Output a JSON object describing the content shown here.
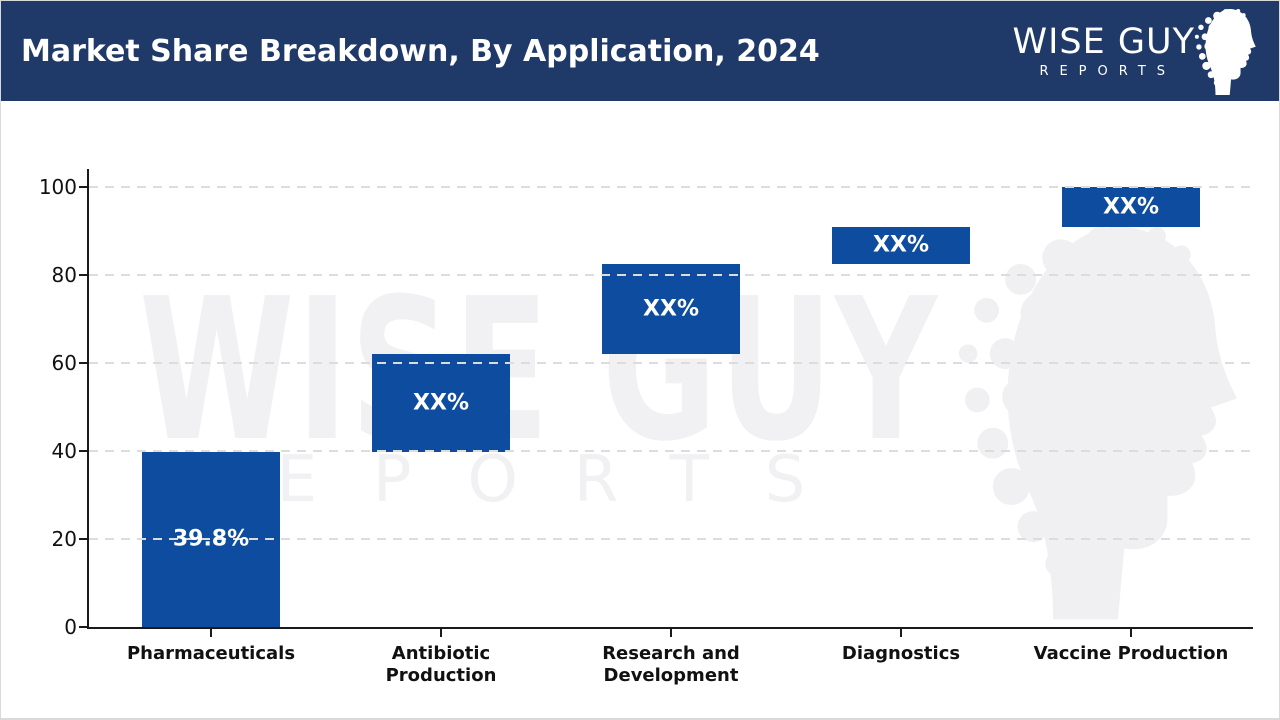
{
  "header": {
    "title": "Market Share Breakdown, By Application, 2024",
    "logo": {
      "line1": "WISE GUY",
      "line2": "REPORTS"
    }
  },
  "watermark": {
    "line1": "WISE GUY",
    "line2": "REPORTS"
  },
  "chart_data": {
    "type": "bar",
    "subtype": "waterfall",
    "title": "Market Share Breakdown, By Application, 2024",
    "categories": [
      "Pharmaceuticals",
      "Antibiotic Production",
      "Research and Development",
      "Diagnostics",
      "Vaccine Production"
    ],
    "category_label_lines": [
      [
        "Pharmaceuticals"
      ],
      [
        "Antibiotic",
        "Production"
      ],
      [
        "Research and",
        "Development"
      ],
      [
        "Diagnostics"
      ],
      [
        "Vaccine Production"
      ]
    ],
    "bar_labels": [
      "39.8%",
      "XX%",
      "XX%",
      "XX%",
      "XX%"
    ],
    "segments": [
      {
        "start": 0,
        "end": 39.8
      },
      {
        "start": 39.8,
        "end": 62
      },
      {
        "start": 62,
        "end": 82.5
      },
      {
        "start": 82.5,
        "end": 91
      },
      {
        "start": 91,
        "end": 100
      }
    ],
    "y_ticks": [
      0,
      20,
      40,
      60,
      80,
      100
    ],
    "ylim": [
      0,
      105
    ],
    "grid": "horizontal-dashed",
    "legend": "none",
    "colors": {
      "bar": "#0d4c9e",
      "bar_label": "#ffffff",
      "header_bg": "#1f3a68",
      "axis": "#1a1a1a",
      "gridline": "#dcdcdc",
      "watermark": "#f1f1f3"
    }
  }
}
